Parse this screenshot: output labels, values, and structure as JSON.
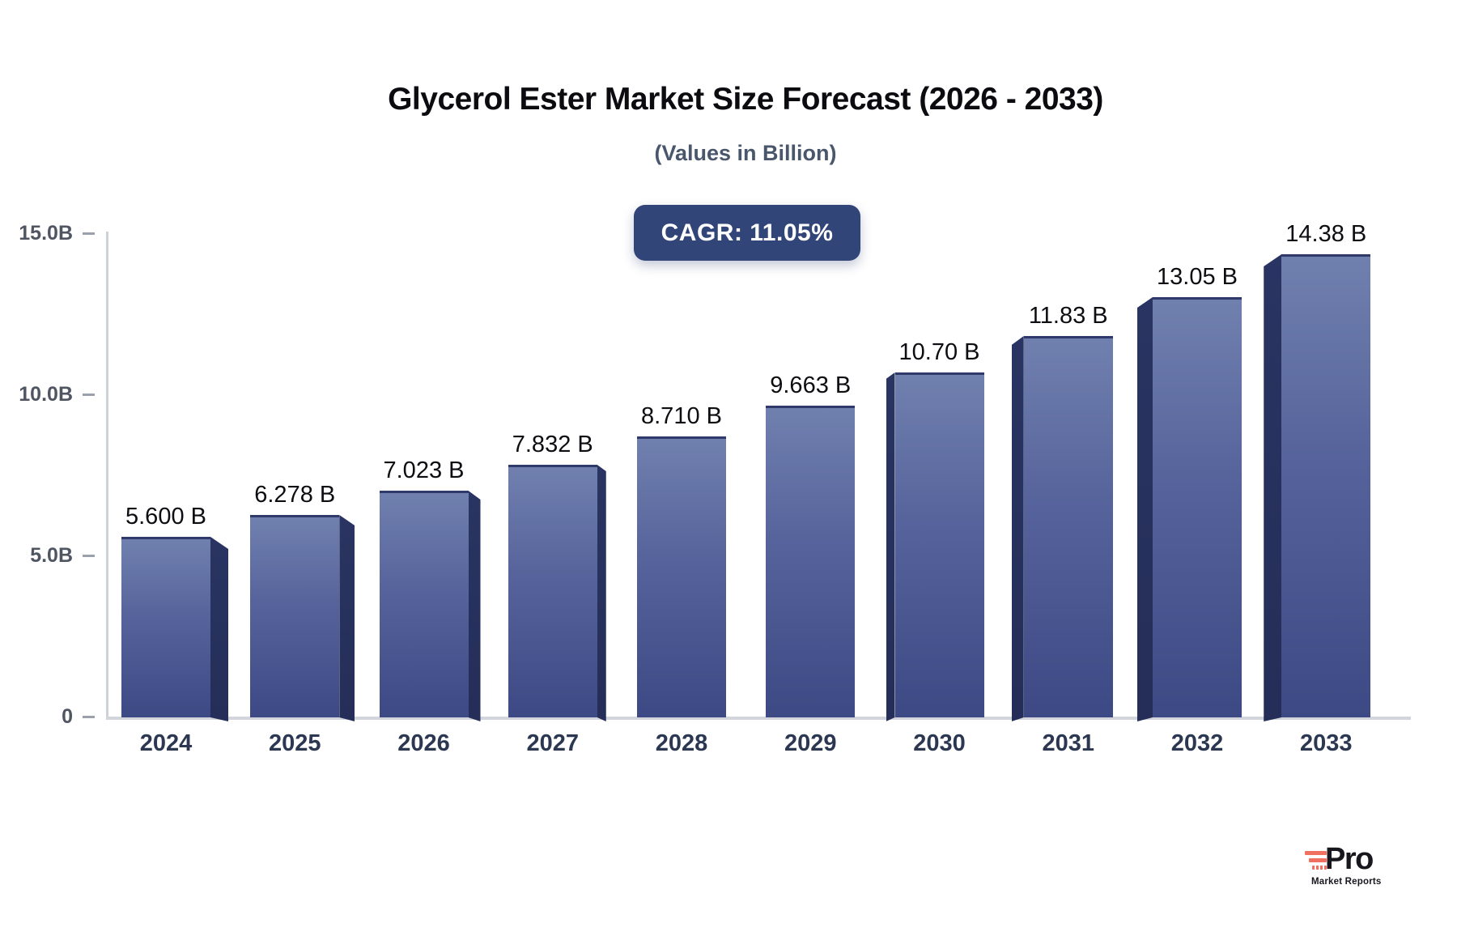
{
  "title": "Glycerol Ester Market Size Forecast (2026 - 2033)",
  "subtitle": "(Values in Billion)",
  "badge": {
    "label": "CAGR: 11.05%",
    "bg": "#324578"
  },
  "logo": {
    "name": "Pro",
    "tagline": "Market Reports",
    "accent": "#f0715f"
  },
  "chart_data": {
    "type": "bar",
    "title": "Glycerol Ester Market Size Forecast (2026 - 2033)",
    "subtitle": "(Values in Billion)",
    "categories": [
      "2024",
      "2025",
      "2026",
      "2027",
      "2028",
      "2029",
      "2030",
      "2031",
      "2032",
      "2033"
    ],
    "values": [
      5.6,
      6.278,
      7.023,
      7.832,
      8.71,
      9.663,
      10.7,
      11.83,
      13.05,
      14.38
    ],
    "bar_labels": [
      "5.600 B",
      "6.278 B",
      "7.023 B",
      "7.832 B",
      "8.710 B",
      "9.663 B",
      "10.70 B",
      "11.83 B",
      "13.05 B",
      "14.38 B"
    ],
    "y_axis": {
      "ticks": [
        {
          "value": 0,
          "label": "0"
        },
        {
          "value": 5,
          "label": "5.0B"
        },
        {
          "value": 10,
          "label": "10.0B"
        },
        {
          "value": 15,
          "label": "15.0B"
        }
      ],
      "max": 15
    },
    "ylim": [
      0,
      15
    ],
    "grid": false,
    "legend": false,
    "colors": {
      "bar_top": "#7080ae",
      "bar_bottom": "#3d4984",
      "bar_side": "#2a3462",
      "bar_edge": "#2f3a6a",
      "axis": "#d2d5dc",
      "badge_bg": "#324578"
    }
  }
}
